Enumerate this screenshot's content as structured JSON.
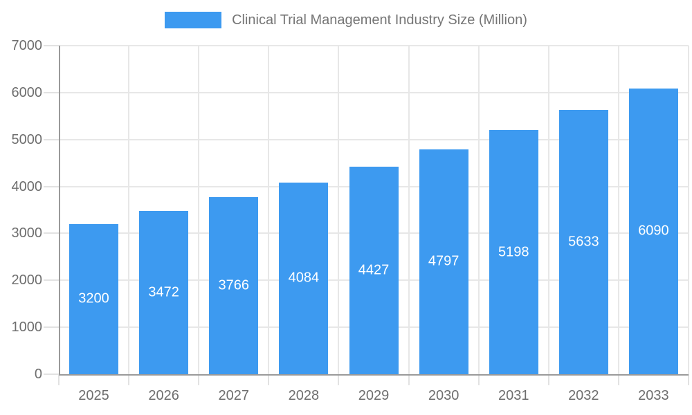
{
  "chart_data": {
    "type": "bar",
    "title": "Clinical Trial Management Industry Size (Million)",
    "legend_position": "top",
    "categories": [
      "2025",
      "2026",
      "2027",
      "2028",
      "2029",
      "2030",
      "2031",
      "2032",
      "2033"
    ],
    "values": [
      3200,
      3472,
      3766,
      4084,
      4427,
      4797,
      5198,
      5633,
      6090
    ],
    "xlabel": "",
    "ylabel": "",
    "ylim": [
      0,
      7000
    ],
    "ytick_step": 1000,
    "ytick_labels": [
      "0",
      "1000",
      "2000",
      "3000",
      "4000",
      "5000",
      "6000",
      "7000"
    ],
    "grid": true,
    "value_labels_shown": true,
    "colors": {
      "bar": "#3D9AF0",
      "value_label": "#ffffff",
      "axis_text": "#6e6e6e",
      "legend_text": "#757575",
      "gridline": "#e7e7e7",
      "tick": "#e2e2e2",
      "axis_line": "#9a9a9a",
      "background": "#ffffff"
    }
  }
}
